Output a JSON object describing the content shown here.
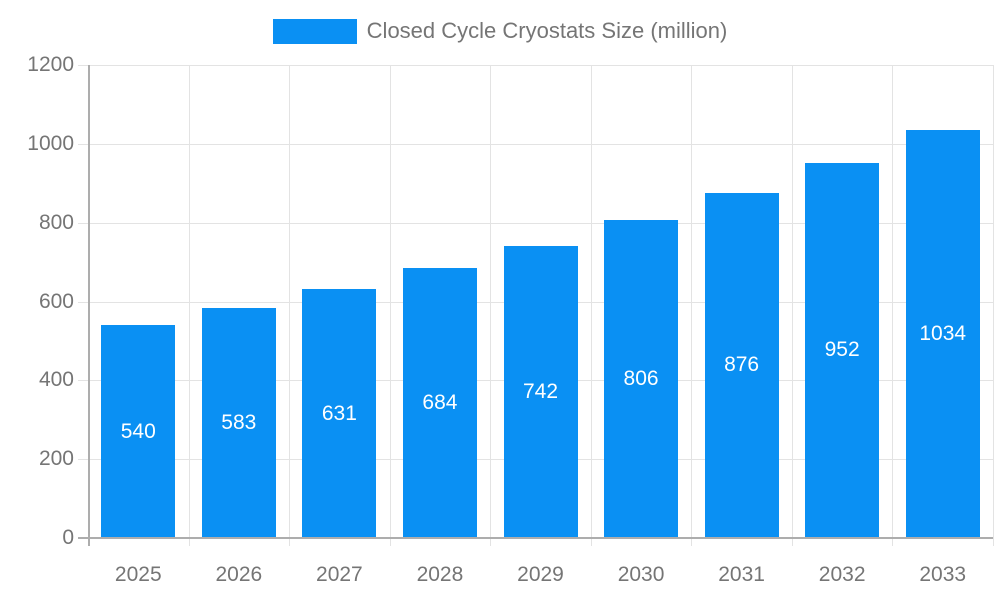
{
  "legend": {
    "label": "Closed Cycle Cryostats Size (million)"
  },
  "chart_data": {
    "type": "bar",
    "title": "Closed Cycle Cryostats Size (million)",
    "categories": [
      "2025",
      "2026",
      "2027",
      "2028",
      "2029",
      "2030",
      "2031",
      "2032",
      "2033"
    ],
    "values": [
      540,
      583,
      631,
      684,
      742,
      806,
      876,
      952,
      1034
    ],
    "xlabel": "",
    "ylabel": "",
    "ylim": [
      0,
      1200
    ],
    "ytick_step": 200,
    "ytick_labels": [
      "0",
      "200",
      "400",
      "600",
      "800",
      "1000",
      "1200"
    ],
    "grid": true,
    "legend_position": "top-center",
    "bar_color": "#0a90f3",
    "value_label_color": "#ffffff",
    "axis_label_color": "#757575",
    "gridline_color": "#e3e3e3",
    "axis_line_color": "#adadad",
    "background_color": "#ffffff"
  }
}
